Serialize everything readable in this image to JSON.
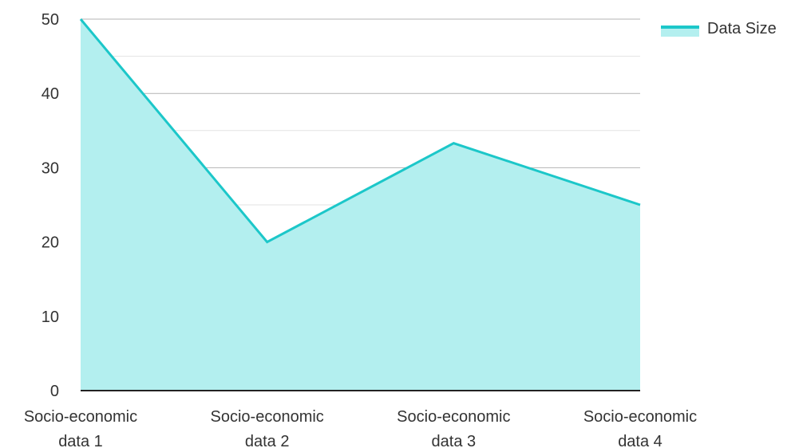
{
  "chart_data": {
    "type": "area",
    "title": "",
    "xlabel": "",
    "ylabel": "",
    "categories": [
      [
        "Socio-economic",
        "data 1"
      ],
      [
        "Socio-economic",
        "data 2"
      ],
      [
        "Socio-economic",
        "data 3"
      ],
      [
        "Socio-economic",
        "data 4"
      ]
    ],
    "series": [
      {
        "name": "Data Size",
        "values": [
          50,
          20,
          33.3,
          25
        ]
      }
    ],
    "ylim": [
      0,
      50
    ],
    "yticks": [
      0,
      10,
      20,
      30,
      40,
      50
    ],
    "grid": true,
    "legend_position": "top-right"
  },
  "colors": {
    "line": "#1cc7c9",
    "fill": "#b3efef",
    "grid_major": "#b4b4b4",
    "grid_minor": "#e3e3e3",
    "axis": "#222222",
    "text": "#333333"
  }
}
